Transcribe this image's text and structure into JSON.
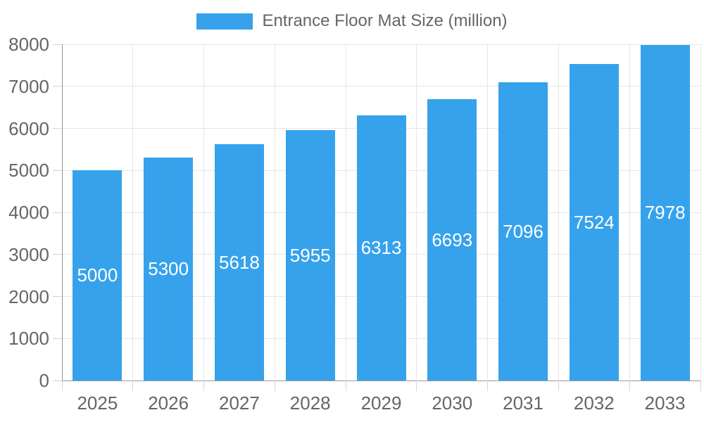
{
  "legend": {
    "label": "Entrance Floor Mat Size (million)",
    "swatch_color": "#36A2EB"
  },
  "chart_data": {
    "type": "bar",
    "title": "Entrance Floor Mat Size (million)",
    "categories": [
      "2025",
      "2026",
      "2027",
      "2028",
      "2029",
      "2030",
      "2031",
      "2032",
      "2033"
    ],
    "values": [
      5000,
      5300,
      5618,
      5955,
      6313,
      6693,
      7096,
      7524,
      7978
    ],
    "xlabel": "",
    "ylabel": "",
    "ylim": [
      0,
      8000
    ],
    "y_ticks": [
      0,
      1000,
      2000,
      3000,
      4000,
      5000,
      6000,
      7000,
      8000
    ],
    "grid": true,
    "legend_position": "top",
    "value_labels_inside_bars": true,
    "colors": {
      "bar": "#36A2EB",
      "value_label": "#FFFFFF",
      "axis_text": "#666666",
      "legend_text": "#666666",
      "gridline": "#E6E6E6",
      "axis_line": "#999999",
      "background": "#FFFFFF"
    }
  }
}
